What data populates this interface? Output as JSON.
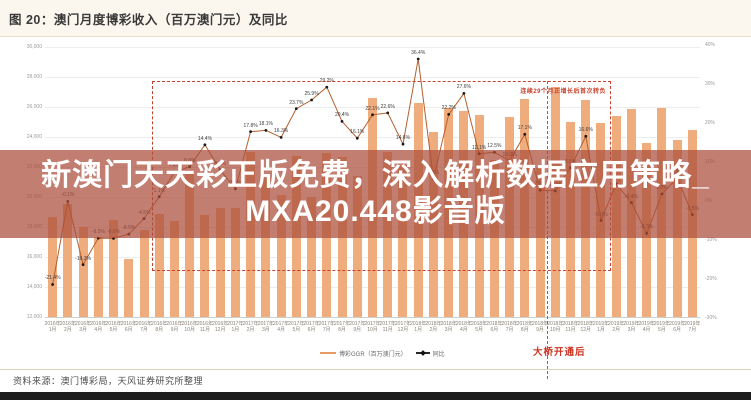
{
  "header": {
    "title": "图 20：澳门月度博彩收入（百万澳门元）及同比"
  },
  "overlay": {
    "line1": "新澳门天天彩正版免费，深入解析数据应用策略_",
    "line2": "MXA20.448影音版"
  },
  "annotations": {
    "box_label": "连续29个月正增长后首次转负",
    "bridge_label": "大桥开通后"
  },
  "legend": {
    "bars": "博彩GGR（百万澳门元）",
    "line": "同比"
  },
  "footer": {
    "source": "资料来源：澳门博彩局，天风证券研究所整理"
  },
  "colors": {
    "bar": "#EFAC7D",
    "line": "#B55F2E",
    "marker": "#1a1a1a",
    "grid": "#ECECEC",
    "accent_red": "#C7422E",
    "overlay": "rgba(170,77,58,0.72)",
    "header_bg": "#FBF7EE",
    "bottom_strip": "#1d1d1d"
  },
  "chart_data": {
    "type": "bar",
    "subtype": "bar+line-dual-axis",
    "title": "澳门月度博彩收入（百万澳门元）及同比",
    "x_years": [
      "2016年",
      "2016年",
      "2016年",
      "2016年",
      "2016年",
      "2016年",
      "2016年",
      "2016年",
      "2016年",
      "2016年",
      "2016年",
      "2016年",
      "2017年",
      "2017年",
      "2017年",
      "2017年",
      "2017年",
      "2017年",
      "2017年",
      "2017年",
      "2017年",
      "2017年",
      "2017年",
      "2017年",
      "2018年",
      "2018年",
      "2018年",
      "2018年",
      "2018年",
      "2018年",
      "2018年",
      "2018年",
      "2018年",
      "2018年",
      "2018年",
      "2018年",
      "2019年",
      "2019年",
      "2019年",
      "2019年",
      "2019年",
      "2019年",
      "2019年"
    ],
    "x_months": [
      "1月",
      "2月",
      "3月",
      "4月",
      "5月",
      "6月",
      "7月",
      "8月",
      "9月",
      "10月",
      "11月",
      "12月",
      "1月",
      "2月",
      "3月",
      "4月",
      "5月",
      "6月",
      "7月",
      "8月",
      "9月",
      "10月",
      "11月",
      "12月",
      "1月",
      "2月",
      "3月",
      "4月",
      "5月",
      "6月",
      "7月",
      "8月",
      "9月",
      "10月",
      "11月",
      "12月",
      "1月",
      "2月",
      "3月",
      "4月",
      "5月",
      "6月",
      "7月"
    ],
    "series": [
      {
        "name": "博彩GGR（百万澳门元）",
        "type": "bar",
        "axis": "left",
        "values": [
          18674,
          19518,
          17980,
          17340,
          18443,
          15877,
          17770,
          18837,
          18405,
          21811,
          18775,
          19234,
          19255,
          22990,
          21235,
          20164,
          22744,
          19992,
          22965,
          22676,
          21377,
          26630,
          23018,
          22120,
          26265,
          24312,
          25952,
          25727,
          25488,
          22491,
          25327,
          26559,
          21952,
          27328,
          24995,
          26468,
          24942,
          25370,
          25840,
          23588,
          25952,
          23812,
          24453
        ]
      },
      {
        "name": "同比",
        "type": "line",
        "axis": "right",
        "values": [
          -21.4,
          -0.1,
          -16.3,
          -9.5,
          -9.6,
          -8.5,
          -4.5,
          1.1,
          7.4,
          8.8,
          14.4,
          8.0,
          3.1,
          17.8,
          18.1,
          16.3,
          23.7,
          25.9,
          29.2,
          20.4,
          16.1,
          22.1,
          22.6,
          14.6,
          36.4,
          5.7,
          22.2,
          27.6,
          12.1,
          12.5,
          10.3,
          17.1,
          2.8,
          2.6,
          8.5,
          16.6,
          -5.0,
          4.4,
          -0.4,
          -8.3,
          1.8,
          5.9,
          -3.5
        ]
      }
    ],
    "left_axis": {
      "ticks": [
        "30,000",
        "28,000",
        "26,000",
        "24,000",
        "22,000",
        "20,000",
        "18,000",
        "16,000",
        "14,000",
        "12,000"
      ],
      "min": 12000,
      "max": 30000,
      "step_value": 2000
    },
    "right_axis": {
      "ticks": [
        "40%",
        "30%",
        "20%",
        "10%",
        "0%",
        "-10%",
        "-20%",
        "-30%"
      ],
      "min": -30,
      "max": 40,
      "step_value": 10
    },
    "grid": true,
    "legend_position": "bottom",
    "highlight_box": {
      "from": "2016年8月",
      "to": "2019年1月",
      "from_index": 7,
      "to_index": 36,
      "label": "连续29个月正增长后首次转负"
    },
    "bridge_line": {
      "at": "2018年10月",
      "at_index": 33,
      "label": "大桥开通后"
    }
  }
}
